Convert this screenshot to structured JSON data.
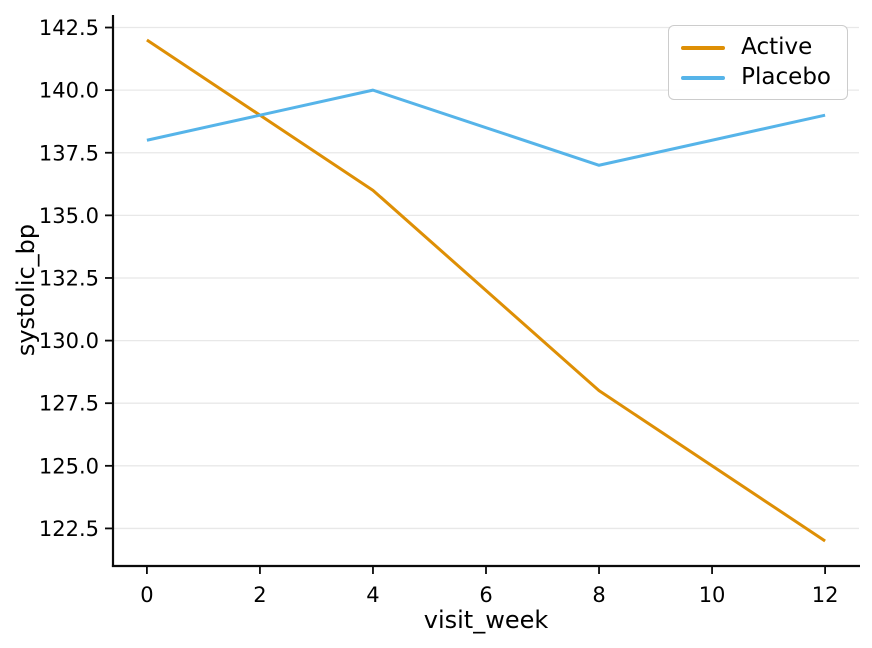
{
  "chart_data": {
    "type": "line",
    "x": [
      0,
      4,
      8,
      12
    ],
    "series": [
      {
        "name": "Active",
        "color": "#DE8F05",
        "values": [
          142,
          136,
          128,
          122
        ]
      },
      {
        "name": "Placebo",
        "color": "#56B4E9",
        "values": [
          138,
          140,
          137,
          139
        ]
      }
    ],
    "xlabel": "visit_week",
    "ylabel": "systolic_bp",
    "xticks": [
      0,
      2,
      4,
      6,
      8,
      10,
      12
    ],
    "yticks": [
      122.5,
      125.0,
      127.5,
      130.0,
      132.5,
      135.0,
      137.5,
      140.0,
      142.5
    ],
    "ytick_decimals": 1,
    "xlim": [
      -0.6,
      12.6
    ],
    "ylim": [
      121,
      143
    ],
    "grid": "horizontal",
    "legend_position": "upper-right"
  },
  "style": {
    "line_width": 3,
    "grid_color": "#e8e8e8",
    "spine_color": "#0a0a0a",
    "tick_color": "#0a0a0a",
    "text_color": "#000000",
    "legend_border_color": "#cccccc",
    "background": "#ffffff"
  }
}
